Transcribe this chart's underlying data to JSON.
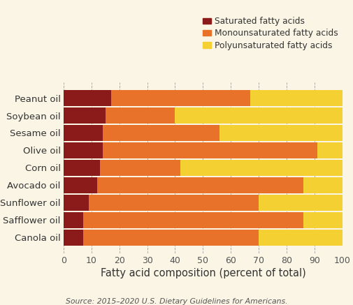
{
  "categories": [
    "Peanut oil",
    "Soybean oil",
    "Sesame oil",
    "Olive oil",
    "Corn oil",
    "Avocado oil",
    "Sunflower oil",
    "Safflower oil",
    "Canola oil"
  ],
  "saturated": [
    17,
    15,
    14,
    14,
    13,
    12,
    9,
    7,
    7
  ],
  "monounsaturated": [
    50,
    25,
    42,
    77,
    29,
    74,
    61,
    79,
    63
  ],
  "polyunsaturated": [
    33,
    60,
    44,
    9,
    58,
    14,
    30,
    14,
    30
  ],
  "colors": {
    "saturated": "#8B1A1A",
    "monounsaturated": "#E8722A",
    "polyunsaturated": "#F5D033"
  },
  "legend_labels": [
    "Saturated fatty acids",
    "Monounsaturated fatty acids",
    "Polyunsaturated fatty acids"
  ],
  "xlabel": "Fatty acid composition (percent of total)",
  "source": "Source: 2015–2020 U.S. Dietary Guidelines for Americans.",
  "background_color": "#FAF5E4",
  "xlim": [
    0,
    100
  ],
  "xticks": [
    0,
    10,
    20,
    30,
    40,
    50,
    60,
    70,
    80,
    90,
    100
  ]
}
